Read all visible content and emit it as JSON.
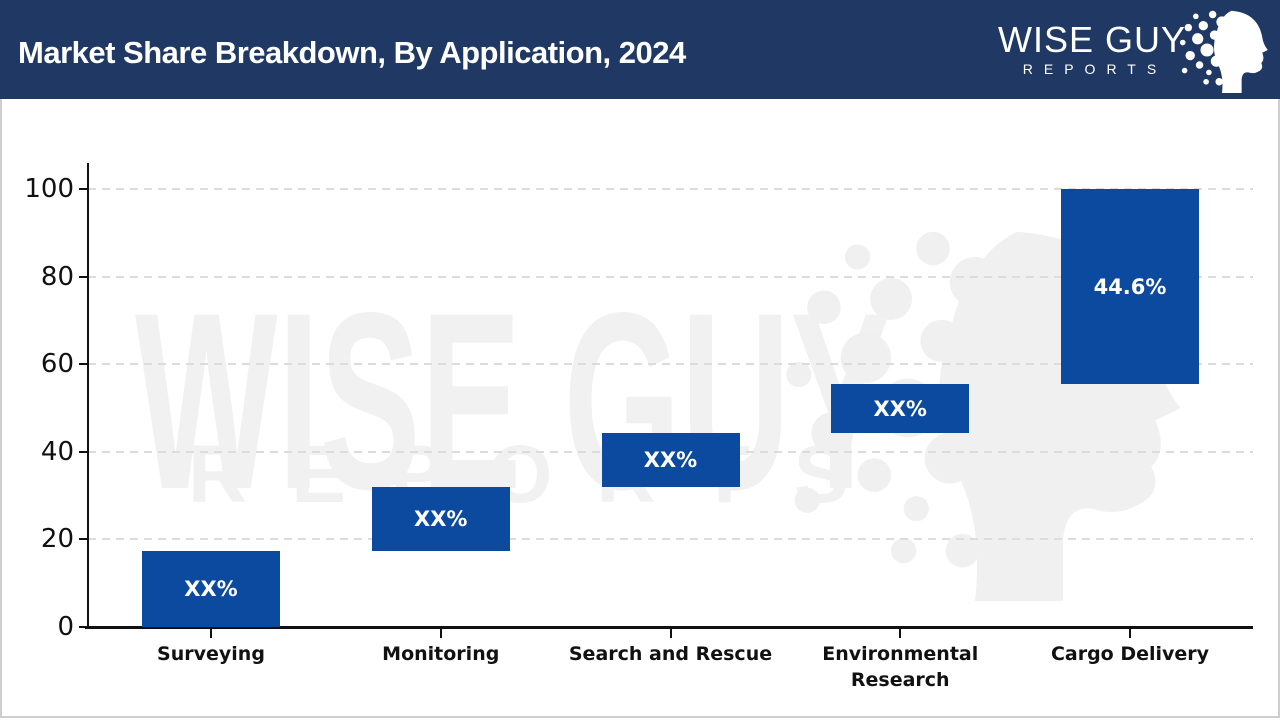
{
  "header": {
    "title": "Market Share Breakdown, By Application, 2024",
    "bg_color": "#1f3864",
    "logo": {
      "line1": "WISE GUY",
      "line2": "REPORTS"
    }
  },
  "watermark": {
    "line1": "WISE GUY",
    "line2": "REPORTS"
  },
  "chart_data": {
    "type": "bar",
    "subtype": "waterfall",
    "title": "Market Share Breakdown, By Application, 2024",
    "xlabel": "",
    "ylabel": "",
    "ylim": [
      0,
      105
    ],
    "y_ticks": [
      0,
      20,
      40,
      60,
      80,
      100
    ],
    "grid": "horizontal-dashed",
    "legend": "none",
    "bar_color": "#0b4a9f",
    "categories": [
      "Surveying",
      "Monitoring",
      "Search and Rescue",
      "Environmental Research",
      "Cargo Delivery"
    ],
    "category_lines": [
      [
        "Surveying"
      ],
      [
        "Monitoring"
      ],
      [
        "Search and Rescue"
      ],
      [
        "Environmental",
        "Research"
      ],
      [
        "Cargo Delivery"
      ]
    ],
    "segments": [
      {
        "category": "Surveying",
        "start": 0,
        "end": 17.4,
        "value": 17.4,
        "label": "XX%"
      },
      {
        "category": "Monitoring",
        "start": 17.4,
        "end": 32.0,
        "value": 14.6,
        "label": "XX%"
      },
      {
        "category": "Search and Rescue",
        "start": 32.0,
        "end": 44.2,
        "value": 12.2,
        "label": "XX%"
      },
      {
        "category": "Environmental Research",
        "start": 44.2,
        "end": 55.4,
        "value": 11.2,
        "label": "XX%"
      },
      {
        "category": "Cargo Delivery",
        "start": 55.4,
        "end": 100,
        "value": 44.6,
        "label": "44.6%"
      }
    ]
  }
}
